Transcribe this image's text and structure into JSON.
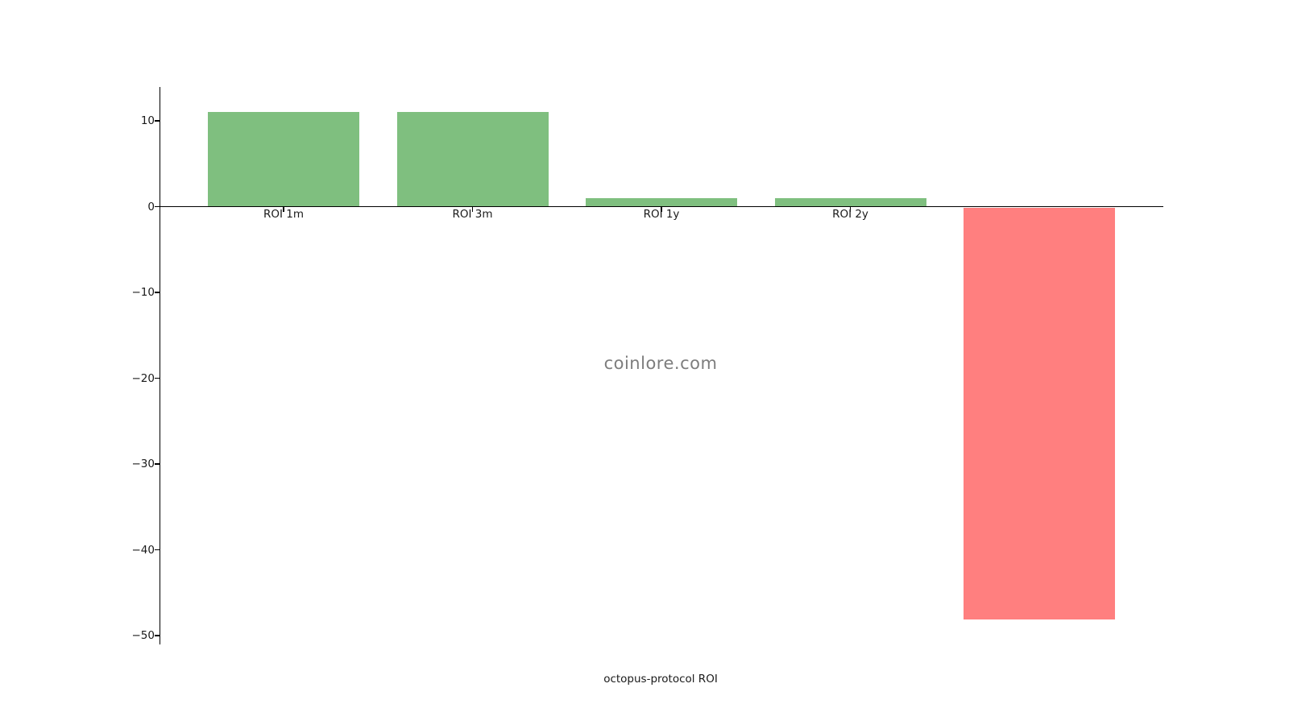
{
  "figure": {
    "watermark": "coinlore.com",
    "bottom_label": "octopus-protocol ROI"
  },
  "chart_data": {
    "type": "bar",
    "title": "octopus-protocol ROI",
    "title_position": "bottom",
    "watermark": "coinlore.com",
    "categories": [
      "ROI 1m",
      "ROI 3m",
      "ROI 1y",
      "ROI 2y",
      ""
    ],
    "values": [
      11,
      11,
      1,
      1,
      -48
    ],
    "bar_colors": [
      "#7fbf7f",
      "#7fbf7f",
      "#7fbf7f",
      "#7fbf7f",
      "#ff7f7f"
    ],
    "positive_color": "#7fbf7f",
    "negative_color": "#ff7f7f",
    "xlabel": "octopus-protocol ROI",
    "ylabel": "",
    "ylim": [
      -51,
      14
    ],
    "yticks": [
      10,
      0,
      -10,
      -20,
      -30,
      -40,
      -50
    ],
    "ytick_labels": [
      "10",
      "0",
      "−10",
      "−20",
      "−30",
      "−40",
      "−50"
    ],
    "grid": false,
    "legend": "none",
    "colors": {
      "axis": "#000000",
      "tick_label": "#1a1a1a",
      "watermark": "#7d7d7d",
      "background": "#ffffff"
    }
  }
}
